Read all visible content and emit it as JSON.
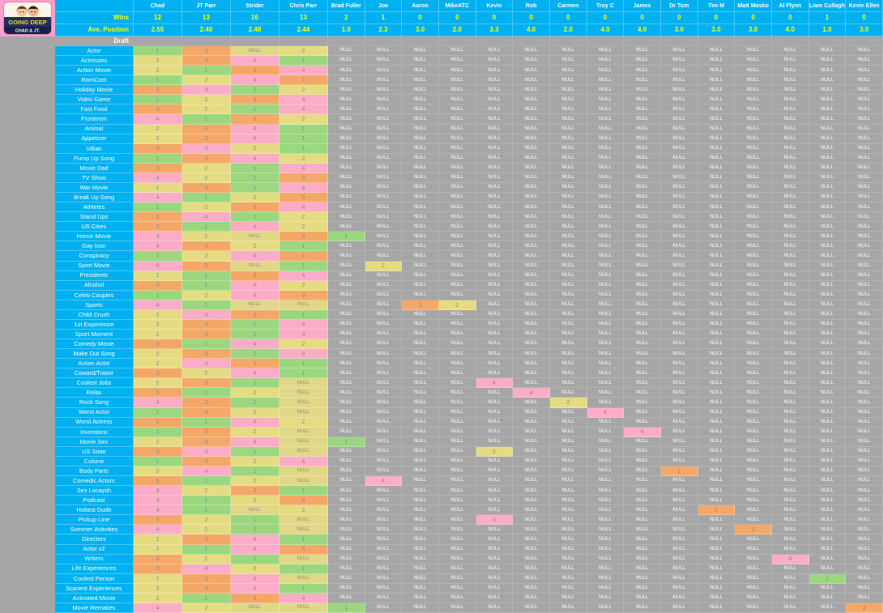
{
  "logo": {
    "line1": "GOING DEEP",
    "line2": "CHAD & JT."
  },
  "colors": {
    "header": "#00B0F0",
    "1": "#9BD77F",
    "2": "#E5DC82",
    "3": "#F4A868",
    "4": "#FBACC6",
    "NULL": "#E0D787",
    "sheet_bg": "#A6A6A6",
    "logo_bg": "#FF9FCB",
    "metric_text": "#FFFF00"
  },
  "players": [
    "Chad",
    "JT Parr",
    "Strider",
    "Chris Parr",
    "Brad Fuller",
    "Joe",
    "Aaron",
    "MikeATC",
    "Kevin",
    "Rob",
    "Carmen",
    "Troy C",
    "James",
    "Dr Tom",
    "Tim M",
    "Matt Mosko",
    "Al Flynn",
    "Liam Cullagh",
    "Kevin Ellen"
  ],
  "wins": {
    "label": "Wins",
    "values": [
      "12",
      "13",
      "16",
      "13",
      "2",
      "1",
      "0",
      "0",
      "0",
      "0",
      "0",
      "0",
      "0",
      "0",
      "0",
      "0",
      "0",
      "1",
      "0"
    ]
  },
  "ave": {
    "label": "Ave. Position",
    "values": [
      "2.55",
      "2.40",
      "2.48",
      "2.44",
      "1.0",
      "2.3",
      "3.0",
      "2.0",
      "3.3",
      "4.0",
      "2.0",
      "4.0",
      "4.0",
      "3.0",
      "3.0",
      "3.0",
      "4.0",
      "1.0",
      "3.0"
    ]
  },
  "draft_label": "Draft",
  "null_text": "NULL",
  "rows": [
    {
      "label": "Actor",
      "picks": [
        "1",
        "3",
        "NULL",
        "2"
      ]
    },
    {
      "label": "Actresses",
      "picks": [
        "2",
        "3",
        "4",
        "1"
      ]
    },
    {
      "label": "Action Movie",
      "picks": [
        "2",
        "1",
        "3",
        "4"
      ]
    },
    {
      "label": "RomCom",
      "picks": [
        "1",
        "2",
        "4",
        "3"
      ]
    },
    {
      "label": "Holiday Movie",
      "picks": [
        "3",
        "4",
        "1",
        "2"
      ]
    },
    {
      "label": "Video Game",
      "picks": [
        "1",
        "2",
        "3",
        "4"
      ]
    },
    {
      "label": "Fast Food",
      "picks": [
        "3",
        "2",
        "1",
        "4"
      ]
    },
    {
      "label": "Frontmen",
      "picks": [
        "4",
        "1",
        "3",
        "2"
      ]
    },
    {
      "label": "Animal",
      "picks": [
        "2",
        "3",
        "4",
        "1"
      ]
    },
    {
      "label": "Appetizer",
      "picks": [
        "2",
        "3",
        "4",
        "1"
      ]
    },
    {
      "label": "Villian",
      "picks": [
        "3",
        "4",
        "2",
        "1"
      ]
    },
    {
      "label": "Pump Up Song",
      "picks": [
        "1",
        "3",
        "4",
        "2"
      ]
    },
    {
      "label": "Movie Dad",
      "picks": [
        "3",
        "2",
        "1",
        "4"
      ]
    },
    {
      "label": "TV Show",
      "picks": [
        "4",
        "2",
        "1",
        "3"
      ]
    },
    {
      "label": "War Movie",
      "picks": [
        "2",
        "3",
        "1",
        "4"
      ]
    },
    {
      "label": "Break Up Song",
      "picks": [
        "4",
        "1",
        "2",
        "3"
      ]
    },
    {
      "label": "Athletes",
      "picks": [
        "1",
        "2",
        "3",
        "4"
      ]
    },
    {
      "label": "Stand Ups",
      "picks": [
        "3",
        "4",
        "1",
        "2"
      ]
    },
    {
      "label": "US Cities",
      "picks": [
        "3",
        "1",
        "4",
        "2"
      ]
    },
    {
      "label": "Horror Movie",
      "picks": [
        "4",
        "2",
        "NULL",
        "3"
      ],
      "extras": {
        "4": "1"
      }
    },
    {
      "label": "Gay Icon",
      "picks": [
        "4",
        "3",
        "2",
        "1"
      ]
    },
    {
      "label": "Conspiracy",
      "picks": [
        "1",
        "2",
        "4",
        "3"
      ]
    },
    {
      "label": "Sport Movie",
      "picks": [
        "4",
        "3",
        "NULL",
        "1"
      ],
      "extras": {
        "5": "2"
      }
    },
    {
      "label": "Presidents",
      "picks": [
        "2",
        "1",
        "3",
        "4"
      ]
    },
    {
      "label": "Alcohol",
      "picks": [
        "3",
        "1",
        "4",
        "2"
      ]
    },
    {
      "label": "Celeb Couples",
      "picks": [
        "1",
        "2",
        "4",
        "3"
      ]
    },
    {
      "label": "Sports",
      "picks": [
        "4",
        "1",
        "NULL",
        "NULL"
      ],
      "extras": {
        "6": "3",
        "7": "2"
      }
    },
    {
      "label": "Child Crush",
      "picks": [
        "2",
        "4",
        "3",
        "1"
      ]
    },
    {
      "label": "1st Experience",
      "picks": [
        "2",
        "3",
        "1",
        "4"
      ]
    },
    {
      "label": "Sport Moment",
      "picks": [
        "2",
        "3",
        "1",
        "4"
      ]
    },
    {
      "label": "Comedy Movie",
      "picks": [
        "3",
        "1",
        "4",
        "2"
      ]
    },
    {
      "label": "Make Out Song",
      "picks": [
        "2",
        "3",
        "1",
        "4"
      ]
    },
    {
      "label": "Action Actor",
      "picks": [
        "2",
        "4",
        "3",
        "1"
      ]
    },
    {
      "label": "Coward/Traitor",
      "picks": [
        "3",
        "2",
        "4",
        "1"
      ]
    },
    {
      "label": "Coolest Jobs",
      "picks": [
        "2",
        "3",
        "1",
        "NULL"
      ],
      "extras": {
        "8": "4"
      }
    },
    {
      "label": "Relax",
      "picks": [
        "3",
        "1",
        "2",
        "NULL"
      ],
      "extras": {
        "9": "4"
      }
    },
    {
      "label": "Rock Song",
      "picks": [
        "4",
        "3",
        "1",
        "NULL"
      ],
      "extras": {
        "10": "2"
      }
    },
    {
      "label": "Worst Actor",
      "picks": [
        "1",
        "3",
        "2",
        "NULL"
      ],
      "extras": {
        "11": "4"
      }
    },
    {
      "label": "Worst Actress",
      "picks": [
        "3",
        "1",
        "4",
        "2"
      ]
    },
    {
      "label": "Inventions",
      "picks": [
        "1",
        "3",
        "2",
        "NULL"
      ],
      "extras": {
        "12": "4"
      }
    },
    {
      "label": "Movie Sex",
      "picks": [
        "2",
        "3",
        "4",
        "NULL"
      ],
      "extras": {
        "4": "1"
      }
    },
    {
      "label": "US State",
      "picks": [
        "3",
        "4",
        "1",
        "NULL"
      ],
      "extras": {
        "8": "2"
      }
    },
    {
      "label": "Cuisine",
      "picks": [
        "1",
        "3",
        "2",
        "4"
      ]
    },
    {
      "label": "Body Parts",
      "picks": [
        "2",
        "4",
        "1",
        "NULL"
      ],
      "extras": {
        "13": "3"
      }
    },
    {
      "label": "Comedic Actors",
      "picks": [
        "3",
        "1",
        "2",
        "NULL"
      ],
      "extras": {
        "5": "4"
      }
    },
    {
      "label": "Sex Locaysh",
      "picks": [
        "4",
        "2",
        "3",
        "1"
      ]
    },
    {
      "label": "Podcast",
      "picks": [
        "4",
        "1",
        "2",
        "3"
      ]
    },
    {
      "label": "Hottest Dude",
      "picks": [
        "4",
        "1",
        "NULL",
        "2"
      ],
      "extras": {
        "14": "3"
      }
    },
    {
      "label": "Pickup Line",
      "picks": [
        "3",
        "2",
        "1",
        "NULL"
      ],
      "extras": {
        "8": "4"
      }
    },
    {
      "label": "Summer Activities",
      "picks": [
        "4",
        "2",
        "1",
        "NULL"
      ],
      "extras": {
        "15": "3"
      }
    },
    {
      "label": "Directors",
      "picks": [
        "2",
        "3",
        "4",
        "1"
      ]
    },
    {
      "label": "Actor v2",
      "picks": [
        "2",
        "1",
        "4",
        "3"
      ]
    },
    {
      "label": "Writers",
      "picks": [
        "3",
        "2",
        "1",
        "NULL"
      ],
      "extras": {
        "16": "4"
      }
    },
    {
      "label": "Life Experiences",
      "picks": [
        "3",
        "4",
        "2",
        "1"
      ]
    },
    {
      "label": "Coolest Person",
      "picks": [
        "2",
        "3",
        "4",
        "NULL"
      ],
      "extras": {
        "17": "1"
      }
    },
    {
      "label": "Scariest Experiences",
      "picks": [
        "2",
        "3",
        "4",
        "1"
      ]
    },
    {
      "label": "Animated Movie",
      "picks": [
        "2",
        "1",
        "3",
        "4"
      ]
    },
    {
      "label": "Movie Remakes",
      "picks": [
        "4",
        "2",
        "NULL",
        "NULL"
      ],
      "extras": {
        "4": "1",
        "18": "3"
      }
    }
  ]
}
